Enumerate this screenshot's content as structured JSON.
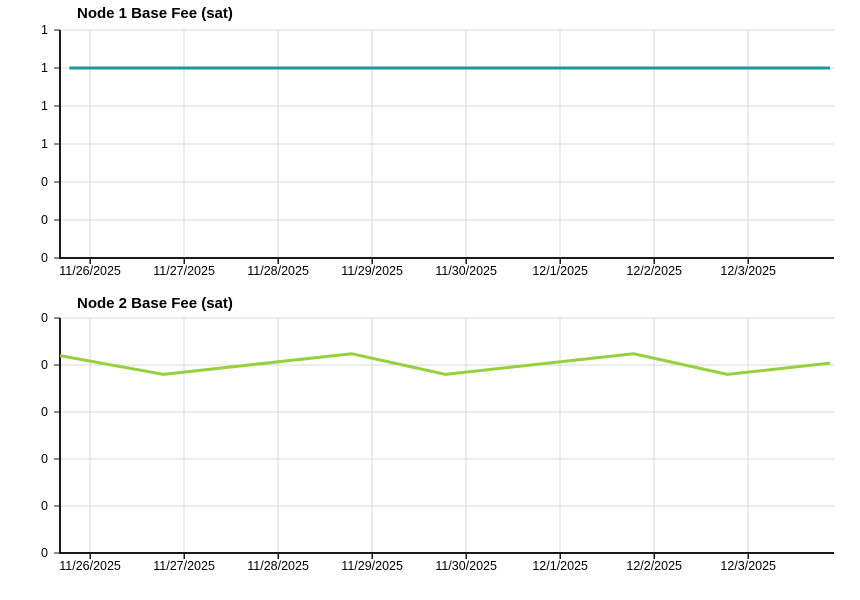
{
  "page": {
    "background": "#ffffff",
    "text_color": "#000000",
    "gridline_color": "#d9d9d9",
    "axis_color": "#1a1a1a"
  },
  "chart_data": [
    {
      "type": "line",
      "title": "Node 1 Base Fee (sat)",
      "xlabel": "",
      "ylabel": "",
      "grid": true,
      "legend": "none",
      "x_tick_labels": [
        "11/26/2025",
        "11/27/2025",
        "11/28/2025",
        "11/29/2025",
        "11/30/2025",
        "12/1/2025",
        "12/2/2025",
        "12/3/2025"
      ],
      "x_ticks_days": [
        0,
        1,
        2,
        3,
        4,
        5,
        6,
        7
      ],
      "x_domain_days": [
        -0.32,
        7.87
      ],
      "ylim": [
        0,
        1.2
      ],
      "y_tick_step": 0.2,
      "y_tick_labels_bottom_to_top": [
        "0",
        "0",
        "0",
        "1",
        "1",
        "1",
        "1"
      ],
      "series": [
        {
          "name": "Node 1 Base Fee",
          "color": "#1a999c",
          "line_width": 3,
          "points": [
            {
              "x": -0.22,
              "y": 1.0
            },
            {
              "x": 7.87,
              "y": 1.0
            }
          ],
          "values_at_dates": [
            1,
            1,
            1,
            1,
            1,
            1,
            1,
            1
          ]
        }
      ]
    },
    {
      "type": "line",
      "title": "Node 2 Base Fee (sat)",
      "xlabel": "",
      "ylabel": "",
      "grid": true,
      "legend": "none",
      "x_tick_labels": [
        "11/26/2025",
        "11/27/2025",
        "11/28/2025",
        "11/29/2025",
        "11/30/2025",
        "12/1/2025",
        "12/2/2025",
        "12/3/2025"
      ],
      "x_ticks_days": [
        0,
        1,
        2,
        3,
        4,
        5,
        6,
        7
      ],
      "x_domain_days": [
        -0.32,
        7.87
      ],
      "ylim": [
        0,
        0.25
      ],
      "y_tick_step": 0.05,
      "y_tick_labels_bottom_to_top": [
        "0",
        "0",
        "0",
        "0",
        "0",
        "0"
      ],
      "series": [
        {
          "name": "Node 2 Base Fee",
          "color": "#97d03c",
          "line_width": 3,
          "points": [
            {
              "x": -0.32,
              "y": 0.21
            },
            {
              "x": 0.78,
              "y": 0.19
            },
            {
              "x": 2.78,
              "y": 0.212
            },
            {
              "x": 3.78,
              "y": 0.19
            },
            {
              "x": 5.78,
              "y": 0.212
            },
            {
              "x": 6.78,
              "y": 0.19
            },
            {
              "x": 7.87,
              "y": 0.202
            }
          ],
          "values_at_dates": [
            0.21,
            0.19,
            0.2,
            0.21,
            0.19,
            0.2,
            0.21,
            0.19
          ]
        }
      ]
    }
  ]
}
